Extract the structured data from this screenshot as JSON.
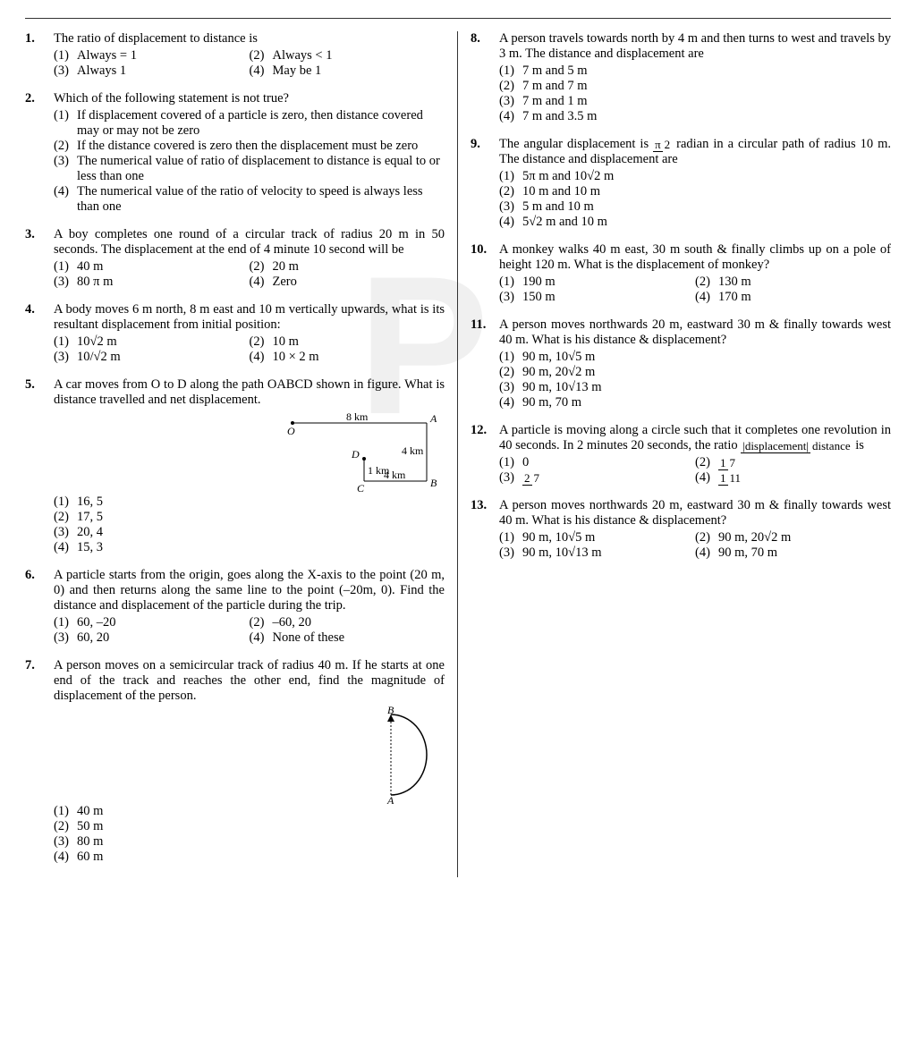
{
  "questions": [
    {
      "num": "1.",
      "stem": "The ratio of displacement to distance is",
      "layout": "2col",
      "opts": [
        {
          "n": "(1)",
          "t": "Always = 1"
        },
        {
          "n": "(2)",
          "t": "Always < 1"
        },
        {
          "n": "(3)",
          "t": "Always 1"
        },
        {
          "n": "(4)",
          "t": "May be 1"
        }
      ]
    },
    {
      "num": "2.",
      "stem": "Which of the following statement is not true?",
      "layout": "1col",
      "opts": [
        {
          "n": "(1)",
          "t": "If displacement covered of a particle is zero, then distance covered may or may not be zero"
        },
        {
          "n": "(2)",
          "t": "If the distance covered is zero then the displacement must be zero"
        },
        {
          "n": "(3)",
          "t": "The numerical value of ratio of displacement to distance is equal to or less than one"
        },
        {
          "n": "(4)",
          "t": "The numerical value of the ratio of velocity to speed is always less than one"
        }
      ]
    },
    {
      "num": "3.",
      "stem": "A boy completes one round of a circular track of radius 20 m in 50 seconds. The displacement at the end of 4 minute 10 second will be",
      "layout": "2col",
      "opts": [
        {
          "n": "(1)",
          "t": "40 m"
        },
        {
          "n": "(2)",
          "t": "20 m"
        },
        {
          "n": "(3)",
          "t": "80 π m"
        },
        {
          "n": "(4)",
          "t": "Zero"
        }
      ]
    },
    {
      "num": "4.",
      "stem": "A body moves 6 m north, 8 m east and 10 m vertically upwards, what is its resultant displacement from initial position:",
      "layout": "2col",
      "opts": [
        {
          "n": "(1)",
          "t": "10√2 m"
        },
        {
          "n": "(2)",
          "t": "10 m"
        },
        {
          "n": "(3)",
          "t": "10/√2 m"
        },
        {
          "n": "(4)",
          "t": "10 × 2 m"
        }
      ]
    },
    {
      "num": "5.",
      "stem": "A car moves from O to D along the path OABCD shown in figure. What is distance travelled and net displacement.",
      "layout": "1col",
      "figure": "path-oabcd",
      "fig": {
        "OA": "8 km",
        "AB": "4 km",
        "DC": "1 km",
        "CB": "4 km",
        "labels": {
          "O": "O",
          "A": "A",
          "B": "B",
          "C": "C",
          "D": "D"
        }
      },
      "opts": [
        {
          "n": "(1)",
          "t": "16, 5"
        },
        {
          "n": "(2)",
          "t": "17, 5"
        },
        {
          "n": "(3)",
          "t": "20, 4"
        },
        {
          "n": "(4)",
          "t": "15, 3"
        }
      ]
    },
    {
      "num": "6.",
      "stem": "A particle starts from the origin, goes along the X-axis to the point (20 m, 0) and then returns along the same line to the point (–20m, 0). Find the distance and displacement of the particle during the trip.",
      "layout": "2col",
      "opts": [
        {
          "n": "(1)",
          "t": "60, –20"
        },
        {
          "n": "(2)",
          "t": "–60, 20"
        },
        {
          "n": "(3)",
          "t": "60, 20"
        },
        {
          "n": "(4)",
          "t": "None of these"
        }
      ]
    },
    {
      "num": "7.",
      "stem": "A person moves on a semicircular track of radius 40 m. If he starts at one end of the track and reaches the other end, find the magnitude of displacement of the person.",
      "layout": "1col",
      "figure": "semicircle",
      "fig": {
        "A": "A",
        "B": "B"
      },
      "opts": [
        {
          "n": "(1)",
          "t": "40 m"
        },
        {
          "n": "(2)",
          "t": "50 m"
        },
        {
          "n": "(3)",
          "t": "80 m"
        },
        {
          "n": "(4)",
          "t": "60 m"
        }
      ]
    },
    {
      "num": "8.",
      "stem": "A person travels towards north by 4 m and then turns to west and travels by 3 m. The distance and displacement are",
      "layout": "1col",
      "opts": [
        {
          "n": "(1)",
          "t": "7 m and 5 m"
        },
        {
          "n": "(2)",
          "t": "7 m and 7 m"
        },
        {
          "n": "(3)",
          "t": "7 m and 1 m"
        },
        {
          "n": "(4)",
          "t": "7 m and 3.5 m"
        }
      ]
    },
    {
      "num": "9.",
      "stem_parts": {
        "p1": "The angular displacement is ",
        "frac_n": "π",
        "frac_d": "2",
        "p2": " radian in a circular path of radius 10 m. The distance and displacement are"
      },
      "layout": "1col",
      "opts": [
        {
          "n": "(1)",
          "t": "5π m and 10√2 m"
        },
        {
          "n": "(2)",
          "t": "10 m and 10 m"
        },
        {
          "n": "(3)",
          "t": "5 m and 10 m"
        },
        {
          "n": "(4)",
          "t": "5√2 m and 10 m"
        }
      ]
    },
    {
      "num": "10.",
      "stem": "A monkey walks 40 m east, 30 m south & finally climbs up on a pole of height 120 m. What is the displacement of monkey?",
      "layout": "2col",
      "opts": [
        {
          "n": "(1)",
          "t": "190 m"
        },
        {
          "n": "(2)",
          "t": "130 m"
        },
        {
          "n": "(3)",
          "t": "150 m"
        },
        {
          "n": "(4)",
          "t": "170 m"
        }
      ]
    },
    {
      "num": "11.",
      "stem": "A person moves northwards 20 m, eastward 30 m & finally towards west 40 m. What is his distance & displacement?",
      "layout": "1col",
      "opts": [
        {
          "n": "(1)",
          "t": "90 m, 10√5 m"
        },
        {
          "n": "(2)",
          "t": "90 m, 20√2 m"
        },
        {
          "n": "(3)",
          "t": "90 m, 10√13 m"
        },
        {
          "n": "(4)",
          "t": "90 m, 70 m"
        }
      ]
    },
    {
      "num": "12.",
      "stem_parts": {
        "p1": "A particle is moving along a circle such that it completes one revolution in 40 seconds. In 2 minutes 20 seconds, the ratio ",
        "frac_n": "|displacement|",
        "frac_d": "distance",
        "p2": " is"
      },
      "layout": "2col",
      "opts_frac": [
        {
          "n": "(1)",
          "plain": "0"
        },
        {
          "n": "(2)",
          "fn": "1",
          "fd": "7"
        },
        {
          "n": "(3)",
          "fn": "2",
          "fd": "7"
        },
        {
          "n": "(4)",
          "fn": "1",
          "fd": "11"
        }
      ]
    },
    {
      "num": "13.",
      "stem": "A person moves northwards 20 m, eastward 30 m & finally towards west 40 m. What is his distance & displacement?",
      "layout": "2col",
      "opts": [
        {
          "n": "(1)",
          "t": "90 m, 10√5 m"
        },
        {
          "n": "(2)",
          "t": "90 m, 20√2 m"
        },
        {
          "n": "(3)",
          "t": "90 m, 10√13 m"
        },
        {
          "n": "(4)",
          "t": "90 m, 70 m"
        }
      ]
    }
  ],
  "split_after_index": 6,
  "watermark_color": "#f0f0f0"
}
